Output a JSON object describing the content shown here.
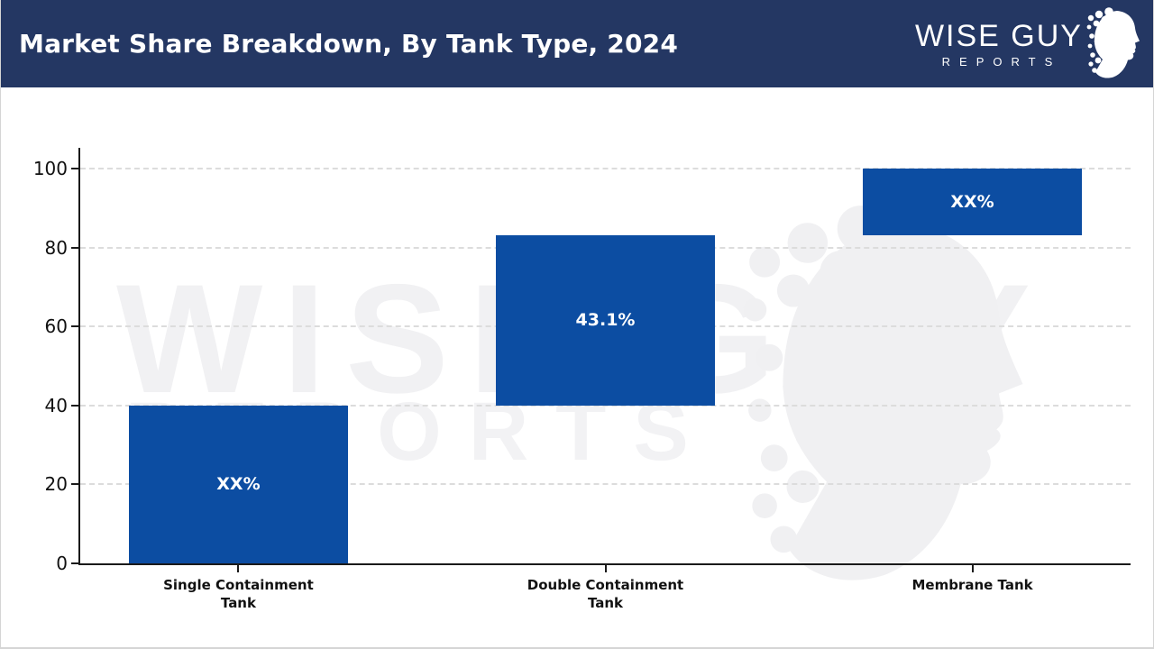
{
  "header": {
    "title": "Market Share Breakdown, By Tank Type, 2024"
  },
  "logo": {
    "name_line": "WISE GUY",
    "sub_line": "REPORTS",
    "head_icon": "dotted-profile-head"
  },
  "watermark": {
    "name_line": "WISE GUY",
    "sub_line": "REPORTS"
  },
  "chart_data": {
    "type": "bar",
    "variant": "waterfall-floating-segments",
    "title": "Market Share Breakdown, By Tank Type, 2024",
    "categories": [
      [
        "Single Containment",
        "Tank"
      ],
      [
        "Double Containment",
        "Tank"
      ],
      [
        "Membrane Tank"
      ]
    ],
    "bars": [
      {
        "name": "Single Containment Tank",
        "start": 0,
        "end": 40,
        "label": "XX%"
      },
      {
        "name": "Double Containment Tank",
        "start": 40,
        "end": 83.1,
        "label": "43.1%"
      },
      {
        "name": "Membrane Tank",
        "start": 83.1,
        "end": 100,
        "label": "XX%"
      }
    ],
    "ylim": [
      0,
      100
    ],
    "yticks": [
      0,
      20,
      40,
      60,
      80,
      100
    ],
    "xlabel": "",
    "ylabel": "",
    "grid": "horizontal-dashed",
    "legend": "none",
    "bar_color": "#0C4DA2",
    "bar_label_color": "#FFFFFF"
  },
  "colors": {
    "header_bg": "#243763",
    "bar": "#0C4DA2",
    "page_bg": "#FFFFFF",
    "grid": "#DCDCDC",
    "axis": "#1A1A1A",
    "watermark": "#F1F1F3"
  }
}
